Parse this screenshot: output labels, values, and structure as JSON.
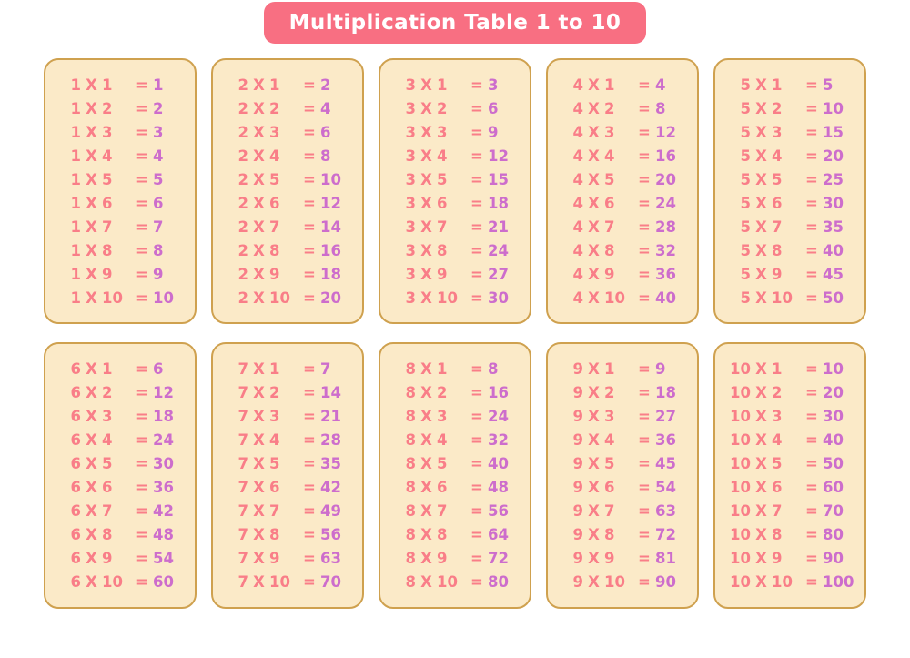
{
  "header": {
    "title": "Multiplication Table 1 to 10"
  },
  "symbols": {
    "times": "X",
    "equals": "="
  },
  "colors": {
    "header_bg": "#F86F82",
    "header_text": "#FFFFFF",
    "page_bg": "#FFFFFF",
    "card_bg": "#FBEAC8",
    "card_border": "#CFA14F",
    "expression": "#F97E88",
    "result": "#CD6DCC"
  },
  "tables": [
    {
      "rows": [
        {
          "a": "1",
          "b": "1",
          "result": "1"
        },
        {
          "a": "1",
          "b": "2",
          "result": "2"
        },
        {
          "a": "1",
          "b": "3",
          "result": "3"
        },
        {
          "a": "1",
          "b": "4",
          "result": "4"
        },
        {
          "a": "1",
          "b": "5",
          "result": "5"
        },
        {
          "a": "1",
          "b": "6",
          "result": "6"
        },
        {
          "a": "1",
          "b": "7",
          "result": "7"
        },
        {
          "a": "1",
          "b": "8",
          "result": "8"
        },
        {
          "a": "1",
          "b": "9",
          "result": "9"
        },
        {
          "a": "1",
          "b": "10",
          "result": "10"
        }
      ]
    },
    {
      "rows": [
        {
          "a": "2",
          "b": "1",
          "result": "2"
        },
        {
          "a": "2",
          "b": "2",
          "result": "4"
        },
        {
          "a": "2",
          "b": "3",
          "result": "6"
        },
        {
          "a": "2",
          "b": "4",
          "result": "8"
        },
        {
          "a": "2",
          "b": "5",
          "result": "10"
        },
        {
          "a": "2",
          "b": "6",
          "result": "12"
        },
        {
          "a": "2",
          "b": "7",
          "result": "14"
        },
        {
          "a": "2",
          "b": "8",
          "result": "16"
        },
        {
          "a": "2",
          "b": "9",
          "result": "18"
        },
        {
          "a": "2",
          "b": "10",
          "result": "20"
        }
      ]
    },
    {
      "rows": [
        {
          "a": "3",
          "b": "1",
          "result": "3"
        },
        {
          "a": "3",
          "b": "2",
          "result": "6"
        },
        {
          "a": "3",
          "b": "3",
          "result": "9"
        },
        {
          "a": "3",
          "b": "4",
          "result": "12"
        },
        {
          "a": "3",
          "b": "5",
          "result": "15"
        },
        {
          "a": "3",
          "b": "6",
          "result": "18"
        },
        {
          "a": "3",
          "b": "7",
          "result": "21"
        },
        {
          "a": "3",
          "b": "8",
          "result": "24"
        },
        {
          "a": "3",
          "b": "9",
          "result": "27"
        },
        {
          "a": "3",
          "b": "10",
          "result": "30"
        }
      ]
    },
    {
      "rows": [
        {
          "a": "4",
          "b": "1",
          "result": "4"
        },
        {
          "a": "4",
          "b": "2",
          "result": "8"
        },
        {
          "a": "4",
          "b": "3",
          "result": "12"
        },
        {
          "a": "4",
          "b": "4",
          "result": "16"
        },
        {
          "a": "4",
          "b": "5",
          "result": "20"
        },
        {
          "a": "4",
          "b": "6",
          "result": "24"
        },
        {
          "a": "4",
          "b": "7",
          "result": "28"
        },
        {
          "a": "4",
          "b": "8",
          "result": "32"
        },
        {
          "a": "4",
          "b": "9",
          "result": "36"
        },
        {
          "a": "4",
          "b": "10",
          "result": "40"
        }
      ]
    },
    {
      "rows": [
        {
          "a": "5",
          "b": "1",
          "result": "5"
        },
        {
          "a": "5",
          "b": "2",
          "result": "10"
        },
        {
          "a": "5",
          "b": "3",
          "result": "15"
        },
        {
          "a": "5",
          "b": "4",
          "result": "20"
        },
        {
          "a": "5",
          "b": "5",
          "result": "25"
        },
        {
          "a": "5",
          "b": "6",
          "result": "30"
        },
        {
          "a": "5",
          "b": "7",
          "result": "35"
        },
        {
          "a": "5",
          "b": "8",
          "result": "40"
        },
        {
          "a": "5",
          "b": "9",
          "result": "45"
        },
        {
          "a": "5",
          "b": "10",
          "result": "50"
        }
      ]
    },
    {
      "rows": [
        {
          "a": "6",
          "b": "1",
          "result": "6"
        },
        {
          "a": "6",
          "b": "2",
          "result": "12"
        },
        {
          "a": "6",
          "b": "3",
          "result": "18"
        },
        {
          "a": "6",
          "b": "4",
          "result": "24"
        },
        {
          "a": "6",
          "b": "5",
          "result": "30"
        },
        {
          "a": "6",
          "b": "6",
          "result": "36"
        },
        {
          "a": "6",
          "b": "7",
          "result": "42"
        },
        {
          "a": "6",
          "b": "8",
          "result": "48"
        },
        {
          "a": "6",
          "b": "9",
          "result": "54"
        },
        {
          "a": "6",
          "b": "10",
          "result": "60"
        }
      ]
    },
    {
      "rows": [
        {
          "a": "7",
          "b": "1",
          "result": "7"
        },
        {
          "a": "7",
          "b": "2",
          "result": "14"
        },
        {
          "a": "7",
          "b": "3",
          "result": "21"
        },
        {
          "a": "7",
          "b": "4",
          "result": "28"
        },
        {
          "a": "7",
          "b": "5",
          "result": "35"
        },
        {
          "a": "7",
          "b": "6",
          "result": "42"
        },
        {
          "a": "7",
          "b": "7",
          "result": "49"
        },
        {
          "a": "7",
          "b": "8",
          "result": "56"
        },
        {
          "a": "7",
          "b": "9",
          "result": "63"
        },
        {
          "a": "7",
          "b": "10",
          "result": "70"
        }
      ]
    },
    {
      "rows": [
        {
          "a": "8",
          "b": "1",
          "result": "8"
        },
        {
          "a": "8",
          "b": "2",
          "result": "16"
        },
        {
          "a": "8",
          "b": "3",
          "result": "24"
        },
        {
          "a": "8",
          "b": "4",
          "result": "32"
        },
        {
          "a": "8",
          "b": "5",
          "result": "40"
        },
        {
          "a": "8",
          "b": "6",
          "result": "48"
        },
        {
          "a": "8",
          "b": "7",
          "result": "56"
        },
        {
          "a": "8",
          "b": "8",
          "result": "64"
        },
        {
          "a": "8",
          "b": "9",
          "result": "72"
        },
        {
          "a": "8",
          "b": "10",
          "result": "80"
        }
      ]
    },
    {
      "rows": [
        {
          "a": "9",
          "b": "1",
          "result": "9"
        },
        {
          "a": "9",
          "b": "2",
          "result": "18"
        },
        {
          "a": "9",
          "b": "3",
          "result": "27"
        },
        {
          "a": "9",
          "b": "4",
          "result": "36"
        },
        {
          "a": "9",
          "b": "5",
          "result": "45"
        },
        {
          "a": "9",
          "b": "6",
          "result": "54"
        },
        {
          "a": "9",
          "b": "7",
          "result": "63"
        },
        {
          "a": "9",
          "b": "8",
          "result": "72"
        },
        {
          "a": "9",
          "b": "9",
          "result": "81"
        },
        {
          "a": "9",
          "b": "10",
          "result": "90"
        }
      ]
    },
    {
      "rows": [
        {
          "a": "10",
          "b": "1",
          "result": "10"
        },
        {
          "a": "10",
          "b": "2",
          "result": "20"
        },
        {
          "a": "10",
          "b": "3",
          "result": "30"
        },
        {
          "a": "10",
          "b": "4",
          "result": "40"
        },
        {
          "a": "10",
          "b": "5",
          "result": "50"
        },
        {
          "a": "10",
          "b": "6",
          "result": "60"
        },
        {
          "a": "10",
          "b": "7",
          "result": "70"
        },
        {
          "a": "10",
          "b": "8",
          "result": "80"
        },
        {
          "a": "10",
          "b": "9",
          "result": "90"
        },
        {
          "a": "10",
          "b": "10",
          "result": "100"
        }
      ]
    }
  ]
}
